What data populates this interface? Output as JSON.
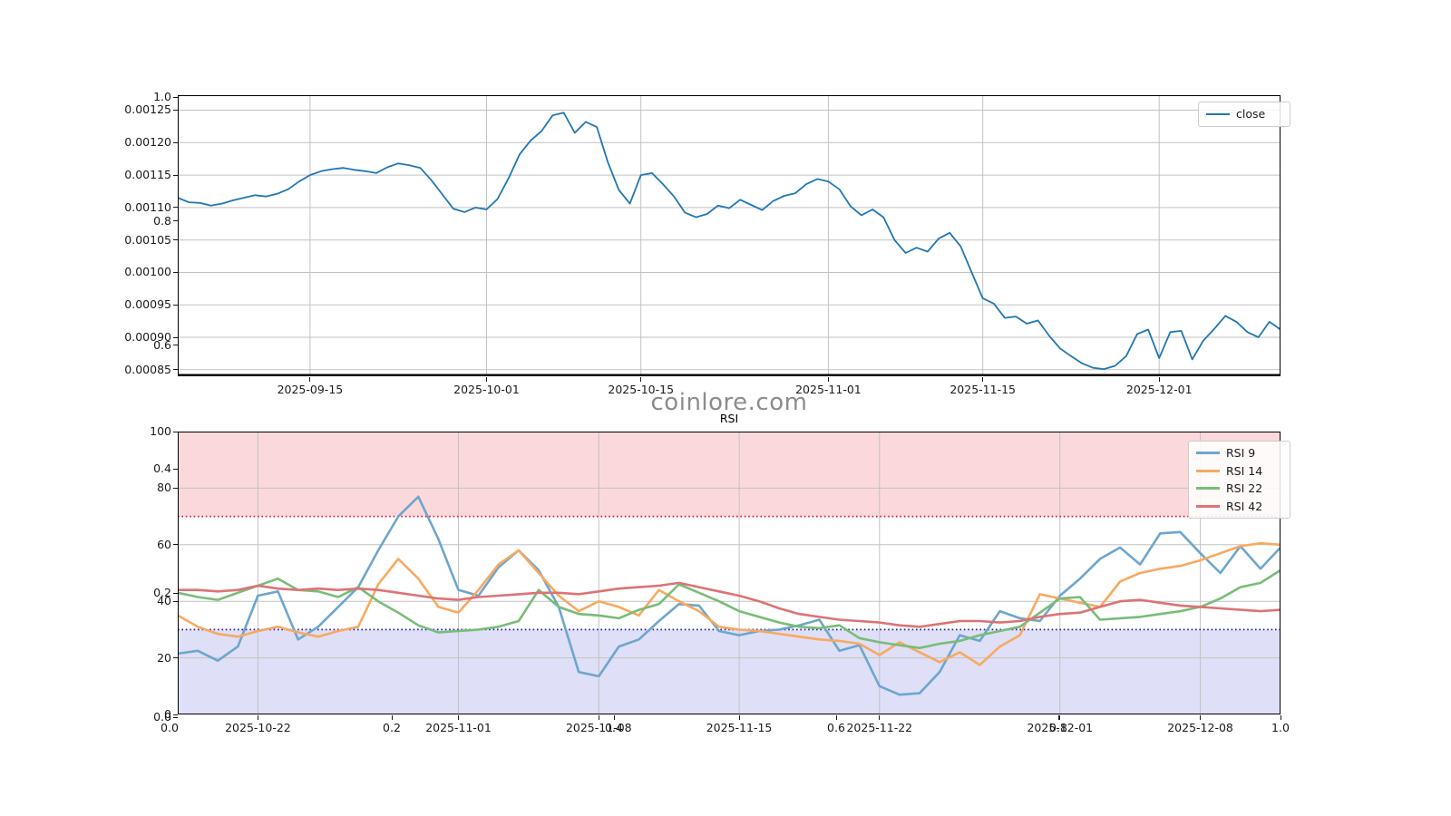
{
  "watermark": "coinlore.com",
  "twin_axis_ticks": {
    "y": [
      "1.0",
      "0.8",
      "0.6",
      "0.4",
      "0.2",
      "0.0"
    ],
    "x": [
      "0.0",
      "0.2",
      "0.4",
      "0.6",
      "0.8",
      "1.0"
    ]
  },
  "chart_data": [
    {
      "type": "line",
      "title": "",
      "x_start_date": "2025-09-03",
      "x_end_date": "2025-12-12",
      "grid": true,
      "legend_position": "upper right",
      "ylim": [
        0.00084,
        0.001273
      ],
      "yticks": [
        {
          "v": 0.00085,
          "label": "0.00085"
        },
        {
          "v": 0.0009,
          "label": "0.00090"
        },
        {
          "v": 0.00095,
          "label": "0.00095"
        },
        {
          "v": 0.001,
          "label": "0.00100"
        },
        {
          "v": 0.00105,
          "label": "0.00105"
        },
        {
          "v": 0.0011,
          "label": "0.00110"
        },
        {
          "v": 0.00115,
          "label": "0.00115"
        },
        {
          "v": 0.0012,
          "label": "0.00120"
        },
        {
          "v": 0.00125,
          "label": "0.00125"
        }
      ],
      "xticks": [
        {
          "day": 12,
          "label": "2025-09-15"
        },
        {
          "day": 28,
          "label": "2025-10-01"
        },
        {
          "day": 42,
          "label": "2025-10-15"
        },
        {
          "day": 59,
          "label": "2025-11-01"
        },
        {
          "day": 73,
          "label": "2025-11-15"
        },
        {
          "day": 89,
          "label": "2025-12-01"
        }
      ],
      "series": [
        {
          "name": "close",
          "color": "#1f77b4",
          "linewidth": 1.8,
          "values": [
            0.001115,
            0.001108,
            0.001107,
            0.001103,
            0.001106,
            0.001111,
            0.001115,
            0.001119,
            0.001117,
            0.001121,
            0.001128,
            0.00114,
            0.00115,
            0.001156,
            0.001159,
            0.001161,
            0.001158,
            0.001156,
            0.001153,
            0.001162,
            0.001168,
            0.001165,
            0.001161,
            0.001142,
            0.00112,
            0.001098,
            0.001093,
            0.0011,
            0.001097,
            0.001113,
            0.001145,
            0.001182,
            0.001203,
            0.001218,
            0.001242,
            0.001246,
            0.001215,
            0.001232,
            0.001224,
            0.00117,
            0.001127,
            0.001106,
            0.00115,
            0.001153,
            0.001136,
            0.001117,
            0.001092,
            0.001085,
            0.00109,
            0.001103,
            0.001099,
            0.001112,
            0.001104,
            0.001096,
            0.00111,
            0.001118,
            0.001122,
            0.001136,
            0.001144,
            0.00114,
            0.001128,
            0.001102,
            0.001088,
            0.001097,
            0.001085,
            0.00105,
            0.00103,
            0.001038,
            0.001032,
            0.001052,
            0.001061,
            0.00104,
            0.001,
            0.00096,
            0.000952,
            0.00093,
            0.000932,
            0.000921,
            0.000926,
            0.000903,
            0.000883,
            0.000871,
            0.00086,
            0.000853,
            0.000851,
            0.000856,
            0.000871,
            0.000905,
            0.000912,
            0.000868,
            0.000908,
            0.00091,
            0.000866,
            0.000895,
            0.000913,
            0.000933,
            0.000924,
            0.000908,
            0.0009,
            0.000924,
            0.000912
          ]
        }
      ]
    },
    {
      "type": "line",
      "title": "RSI",
      "x_start_date": "2025-10-18",
      "x_end_date": "2025-12-12",
      "grid": true,
      "legend_position": "upper right",
      "ylim": [
        0,
        100
      ],
      "yticks": [
        {
          "v": 0,
          "label": "0"
        },
        {
          "v": 20,
          "label": "20"
        },
        {
          "v": 40,
          "label": "40"
        },
        {
          "v": 60,
          "label": "60"
        },
        {
          "v": 80,
          "label": "80"
        },
        {
          "v": 100,
          "label": "100"
        }
      ],
      "xticks": [
        {
          "day": 4,
          "label": "2025-10-22"
        },
        {
          "day": 14,
          "label": "2025-11-01"
        },
        {
          "day": 21,
          "label": "2025-11-08"
        },
        {
          "day": 28,
          "label": "2025-11-15"
        },
        {
          "day": 35,
          "label": "2025-11-22"
        },
        {
          "day": 44,
          "label": "2025-12-01"
        },
        {
          "day": 51,
          "label": "2025-12-08"
        }
      ],
      "bands": [
        {
          "y0": 70,
          "y1": 100,
          "color": "#fbd9db",
          "meaning": "overbought"
        },
        {
          "y0": 0,
          "y1": 30,
          "color": "#dfdff7",
          "meaning": "oversold"
        }
      ],
      "hlines": [
        {
          "y": 70,
          "color": "#dc143c",
          "style": "dotted"
        },
        {
          "y": 30,
          "color": "#2222aa",
          "style": "dotted"
        }
      ],
      "series": [
        {
          "name": "RSI 9",
          "color": "#6da6ce",
          "linewidth": 2.6,
          "values": [
            21.5,
            22.5,
            19,
            24,
            42,
            43.5,
            26.5,
            31,
            38,
            45,
            58,
            70,
            77,
            62,
            44,
            42,
            52,
            58,
            51,
            38,
            15,
            13.5,
            24,
            26.5,
            33,
            39,
            38.5,
            29.5,
            28,
            29.5,
            30,
            31.5,
            33.5,
            22.5,
            24.5,
            10,
            7,
            7.5,
            15,
            28,
            26,
            36.5,
            34,
            33,
            42,
            48,
            55,
            59,
            53,
            64,
            64.5,
            57,
            50,
            59.5,
            51.5,
            59
          ]
        },
        {
          "name": "RSI 14",
          "color": "#f8a95f",
          "linewidth": 2.6,
          "values": [
            35,
            31,
            28.5,
            27.5,
            29.5,
            31,
            29,
            27.5,
            29.5,
            31,
            46,
            55,
            48,
            38,
            36,
            44,
            53,
            58,
            50,
            42,
            36.5,
            40,
            38,
            35,
            44,
            40,
            36.5,
            31,
            30,
            29.5,
            28.5,
            27.5,
            26.5,
            26,
            25,
            21,
            25.5,
            22,
            18.5,
            22,
            17.5,
            24,
            28,
            42.5,
            41,
            39.5,
            38,
            47,
            50,
            51.5,
            52.5,
            54.5,
            57,
            59.5,
            60.5,
            60
          ]
        },
        {
          "name": "RSI 22",
          "color": "#77bd77",
          "linewidth": 2.6,
          "values": [
            43,
            41.5,
            40.5,
            43,
            45.5,
            48,
            44,
            43.5,
            41.5,
            45,
            40,
            36,
            31.5,
            29,
            29.5,
            30,
            31,
            33,
            44,
            38,
            35.5,
            35,
            34,
            37,
            39,
            46,
            43,
            40,
            36.5,
            34.5,
            32.5,
            31,
            30.5,
            31.5,
            27,
            25.5,
            24.5,
            23.5,
            25,
            26,
            28,
            29.5,
            31,
            36,
            41,
            41.5,
            33.5,
            34,
            34.5,
            35.5,
            36.5,
            38,
            41,
            45,
            46.5,
            51
          ]
        },
        {
          "name": "RSI 42",
          "color": "#dd7275",
          "linewidth": 2.6,
          "values": [
            44,
            44,
            43.5,
            44,
            45.5,
            44.5,
            44,
            44.5,
            44,
            44.5,
            44,
            43,
            42,
            41,
            40.5,
            41.5,
            42,
            42.5,
            43,
            43,
            42.5,
            43.5,
            44.5,
            45,
            45.5,
            46.5,
            45,
            43.5,
            42,
            40,
            37.5,
            35.5,
            34.5,
            33.5,
            33,
            32.5,
            31.5,
            31,
            32,
            33,
            33,
            32.5,
            33,
            34.5,
            35.5,
            36,
            38,
            40,
            40.5,
            39.5,
            38.5,
            38,
            37.5,
            37,
            36.5,
            37
          ]
        }
      ]
    }
  ]
}
